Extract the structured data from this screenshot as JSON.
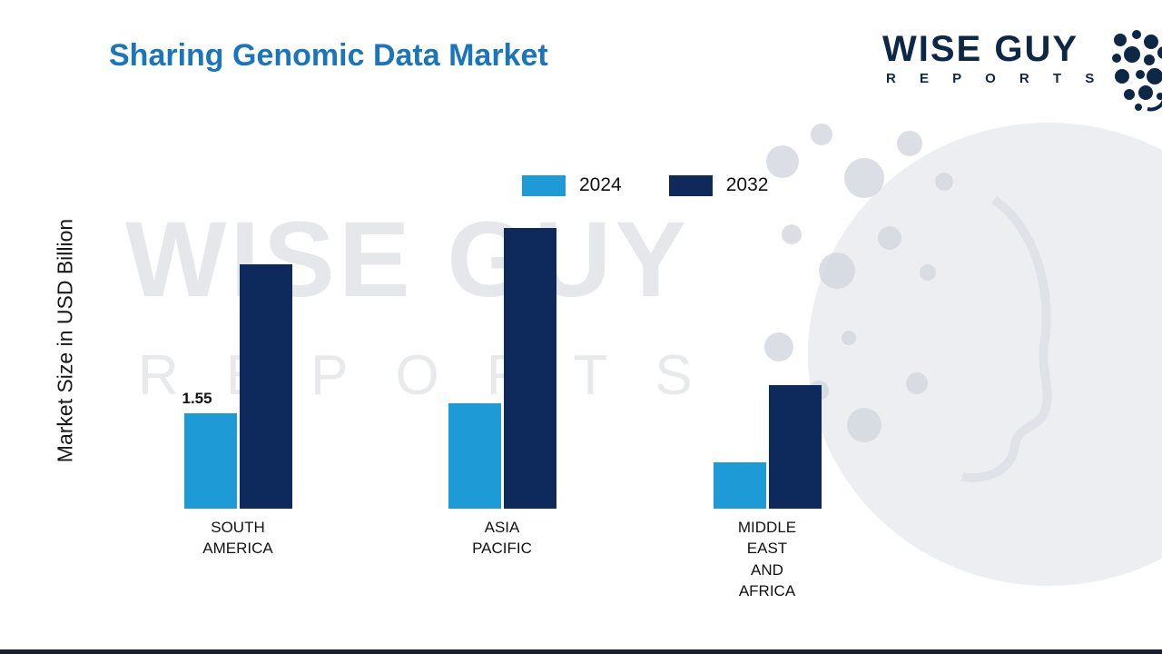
{
  "page": {
    "title": "Sharing Genomic Data Market",
    "ylabel": "Market Size in USD Billion"
  },
  "logo": {
    "wordmark": "WISE GUY",
    "subtext": "R E P O R T S"
  },
  "watermark": {
    "line1": "WISE GUY",
    "line2": "REPORTS"
  },
  "legend": [
    {
      "label": "2024",
      "color": "#1e9bd7"
    },
    {
      "label": "2032",
      "color": "#0e2a5c"
    }
  ],
  "colors": {
    "title_blue": "#1b75bb",
    "series_2024": "#1e9bd7",
    "series_2032": "#0e2a5c",
    "logo_navy": "#0d2747"
  },
  "chart_data": {
    "type": "bar",
    "title": "Sharing Genomic Data Market",
    "xlabel": "",
    "ylabel": "Market Size in USD Billion",
    "categories": [
      "SOUTH AMERICA",
      "ASIA PACIFIC",
      "MIDDLE EAST AND AFRICA"
    ],
    "category_display_lines": [
      [
        "SOUTH",
        "AMERICA"
      ],
      [
        "ASIA",
        "PACIFIC"
      ],
      [
        "MIDDLE",
        "EAST",
        "AND",
        "AFRICA"
      ]
    ],
    "series": [
      {
        "name": "2024",
        "color": "#1e9bd7",
        "values": [
          1.55,
          1.7,
          0.75
        ]
      },
      {
        "name": "2032",
        "color": "#0e2a5c",
        "values": [
          3.95,
          4.55,
          2.0
        ]
      }
    ],
    "annotations": [
      {
        "series": "2024",
        "category": "SOUTH AMERICA",
        "text": "1.55"
      }
    ],
    "ylim": [
      0,
      5
    ],
    "grid": false,
    "legend_position": "top-center"
  }
}
